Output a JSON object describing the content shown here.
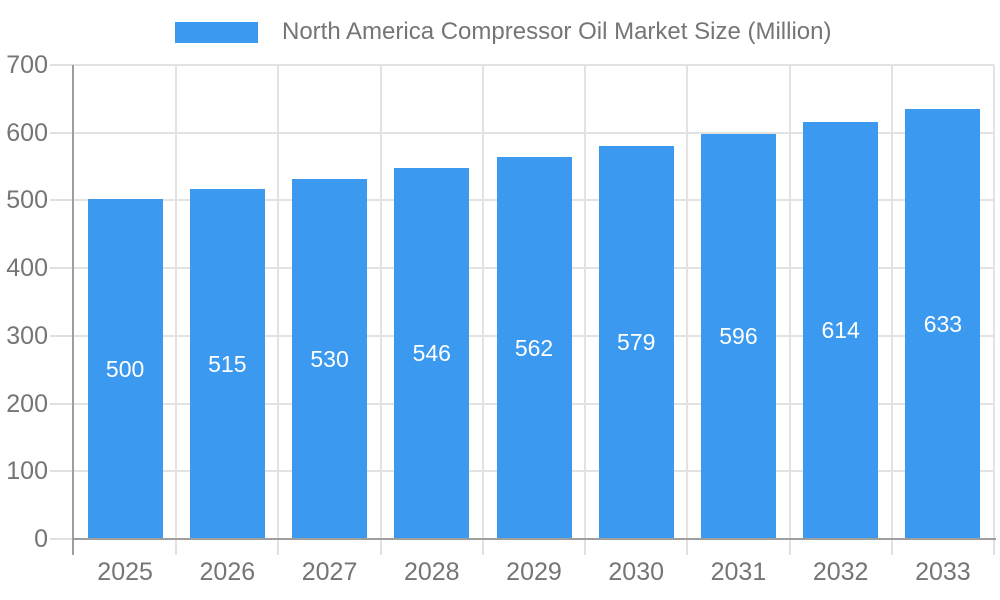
{
  "legend": {
    "label": "North America Compressor Oil Market Size (Million)"
  },
  "chart_data": {
    "type": "bar",
    "title": "North America Compressor Oil Market Size (Million)",
    "categories": [
      "2025",
      "2026",
      "2027",
      "2028",
      "2029",
      "2030",
      "2031",
      "2032",
      "2033"
    ],
    "values": [
      500,
      515,
      530,
      546,
      562,
      579,
      596,
      614,
      633
    ],
    "xlabel": "",
    "ylabel": "",
    "ylim": [
      0,
      700
    ],
    "yticks": [
      0,
      100,
      200,
      300,
      400,
      500,
      600,
      700
    ],
    "grid": true,
    "legend_position": "top",
    "value_label_position": "center-of-bar"
  },
  "colors": {
    "bar": "#3B99EF",
    "grid": "#E3E3E3",
    "tick": "#E0E0E0",
    "axis": "#9E9E9E",
    "text": "#757575",
    "value_label": "#FFFFFF",
    "background": "#FFFFFF"
  }
}
